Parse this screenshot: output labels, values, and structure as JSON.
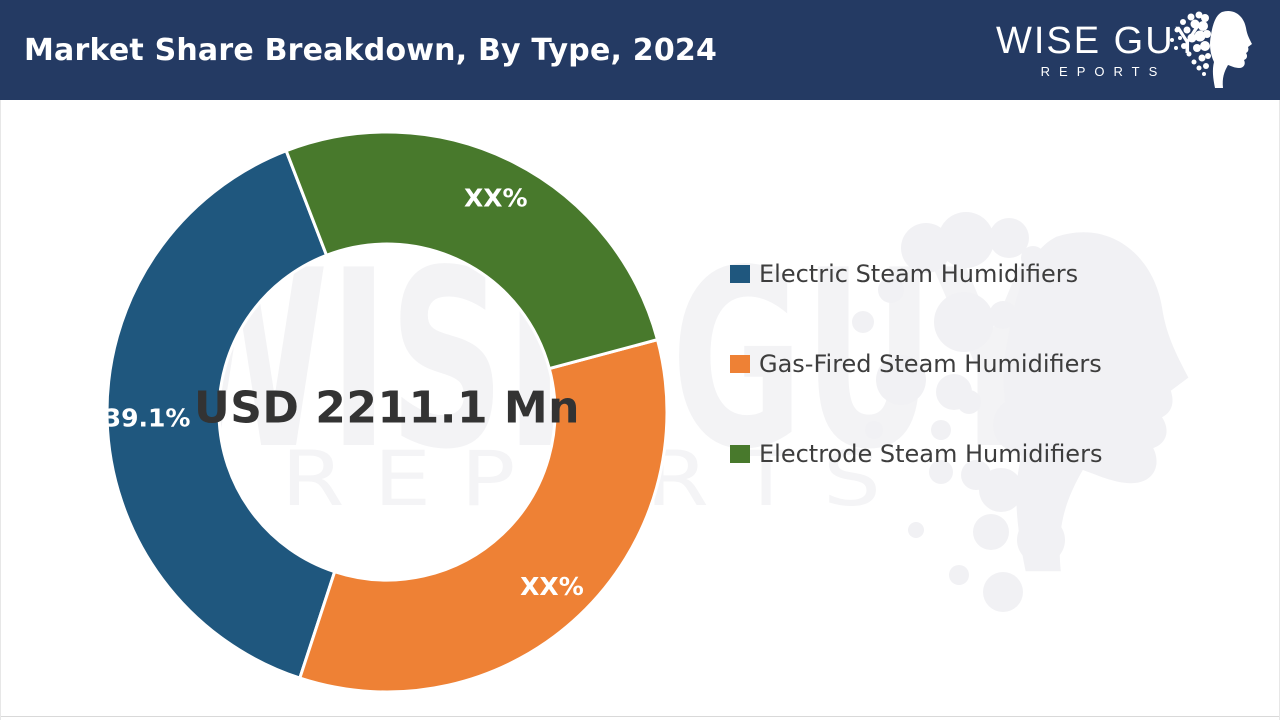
{
  "header": {
    "title": "Market Share Breakdown, By Type, 2024",
    "logo": {
      "line1": "WISE GUY",
      "line2": "REPORTS"
    }
  },
  "chart_data": {
    "type": "pie",
    "subtype": "donut",
    "title": "Market Share Breakdown, By Type, 2024",
    "center_label": "USD 2211.1 Mn",
    "start_angle_deg": 111.1,
    "direction": "ccw",
    "legend_position": "right",
    "slices": [
      {
        "label": "Electric Steam Humidifiers",
        "display_value": "39.1%",
        "value": 39.1,
        "color": "#1f577e"
      },
      {
        "label": "Gas-Fired Steam Humidifiers",
        "display_value": "XX%",
        "value": 34.2,
        "color": "#ee8135"
      },
      {
        "label": "Electrode Steam Humidifiers",
        "display_value": "XX%",
        "value": 26.7,
        "color": "#48792c"
      }
    ]
  },
  "watermark": {
    "line1": "WISE GUY",
    "line2": "R E P O R T S"
  }
}
